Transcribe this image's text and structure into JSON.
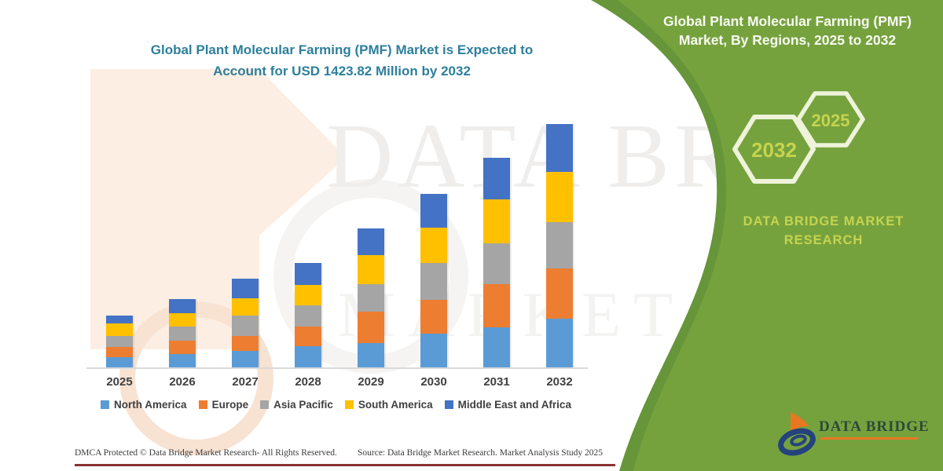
{
  "left_panel": {
    "chart_title_line1": "Global Plant Molecular Farming (PMF) Market is Expected to",
    "chart_title_line2": "Account for USD 1423.82 Million by 2032",
    "watermark_line1": "DATA BRIDGE",
    "watermark_line2": "MARKET RESEARCH",
    "footer_left": "DMCA Protected © Data Bridge Market Research- All Rights Reserved.",
    "footer_right": "Source: Data Bridge Market Research. Market Analysis Study 2025"
  },
  "right_panel": {
    "title_line1": "Global Plant Molecular Farming (PMF)",
    "title_line2": "Market, By Regions, 2025 to 2032",
    "hexagon_large_label": "2032",
    "hexagon_small_label": "2025",
    "brand_line1": "DATA BRIDGE MARKET",
    "brand_line2": "RESEARCH",
    "logo_text": "DATA BRIDGE",
    "panel_color": "#76a23e",
    "panel_facet_color": "#67953a",
    "accent_text_color": "#c6d44e"
  },
  "chart_data": {
    "type": "bar",
    "stacked": true,
    "title": "Global Plant Molecular Farming (PMF) Market is Expected to Account for USD 1423.82 Million by 2032",
    "units": "USD Million",
    "y_axis_visible": false,
    "grid": false,
    "legend_position": "bottom",
    "total_2032": 1423.82,
    "categories": [
      "2025",
      "2026",
      "2027",
      "2028",
      "2029",
      "2030",
      "2031",
      "2032"
    ],
    "series": [
      {
        "name": "North America",
        "color": "#5b9bd5",
        "values": [
          60,
          77,
          98,
          123,
          144,
          198,
          236,
          287
        ]
      },
      {
        "name": "Europe",
        "color": "#ed7d31",
        "values": [
          61,
          77,
          84,
          115,
          184,
          199,
          253,
          293
        ]
      },
      {
        "name": "Asia Pacific",
        "color": "#a5a5a5",
        "values": [
          62,
          84,
          123,
          123,
          161,
          214,
          239,
          270
        ]
      },
      {
        "name": "South America",
        "color": "#ffc000",
        "values": [
          73,
          77,
          100,
          123,
          169,
          207,
          253,
          292
        ]
      },
      {
        "name": "Middle East and Africa",
        "color": "#4472c4",
        "values": [
          47,
          84,
          115,
          129,
          156,
          198,
          244,
          281.82
        ]
      }
    ]
  }
}
